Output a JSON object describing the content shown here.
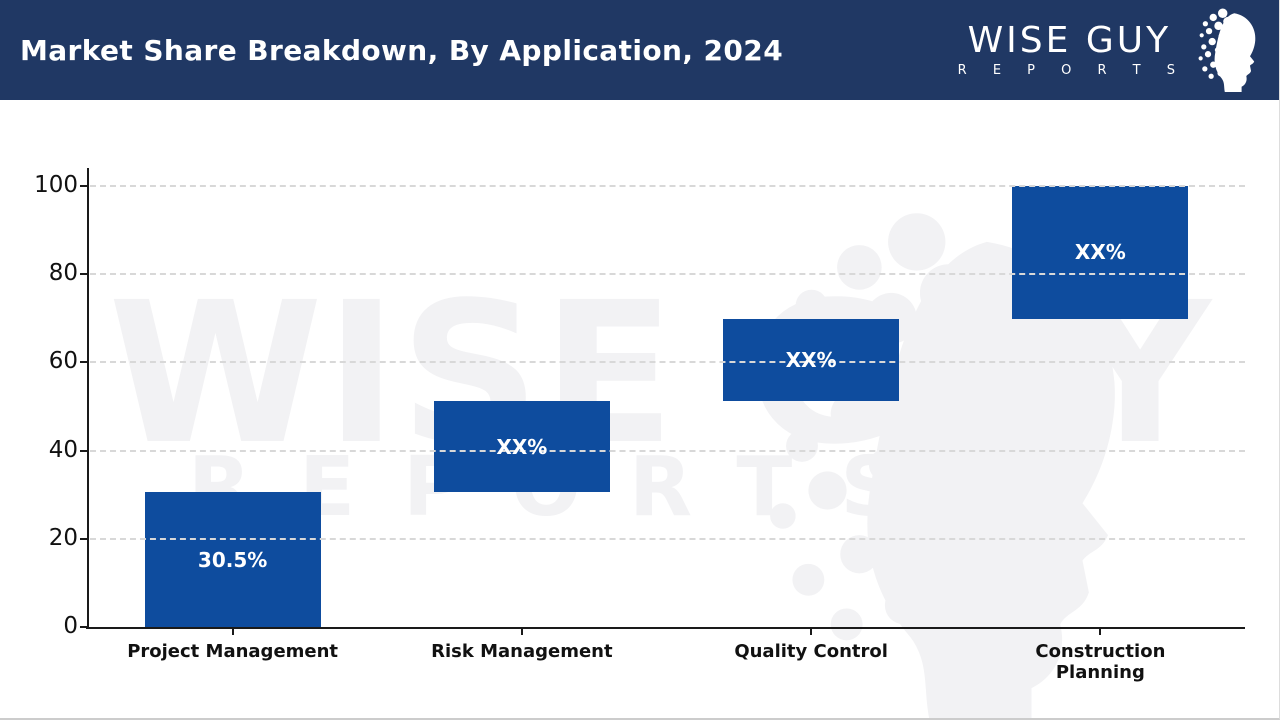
{
  "header": {
    "title": "Market Share Breakdown, By Application, 2024",
    "logo": {
      "line1": "WISE GUY",
      "line2": "R E P O R T S"
    }
  },
  "watermark": {
    "line1": "WISE GUY",
    "line2": "REPORTS"
  },
  "colors": {
    "header_bg": "#203864",
    "bar": "#0e4c9e",
    "grid": "#d8d8d8",
    "axis": "#1a1a1a",
    "bar_label_text": "#ffffff",
    "watermark": "#f2f2f4"
  },
  "chart_data": {
    "type": "bar",
    "subtype": "waterfall-floating-bars",
    "title": "Market Share Breakdown, By Application, 2024",
    "categories": [
      "Project Management",
      "Risk Management",
      "Quality Control",
      "Construction\nPlanning"
    ],
    "segments": [
      {
        "category": "Project Management",
        "start": 0,
        "end": 30.5,
        "label": "30.5%"
      },
      {
        "category": "Risk Management",
        "start": 30.5,
        "end": 51.2,
        "label": "XX%"
      },
      {
        "category": "Quality Control",
        "start": 51.2,
        "end": 69.9,
        "label": "XX%"
      },
      {
        "category": "Construction Planning",
        "start": 69.9,
        "end": 100,
        "label": "XX%"
      }
    ],
    "ylabel": "",
    "xlabel": "",
    "yticks": [
      0,
      20,
      40,
      60,
      80,
      100
    ],
    "ylim": [
      0,
      104
    ],
    "grid": "horizontal-dashed",
    "legend": "none"
  }
}
